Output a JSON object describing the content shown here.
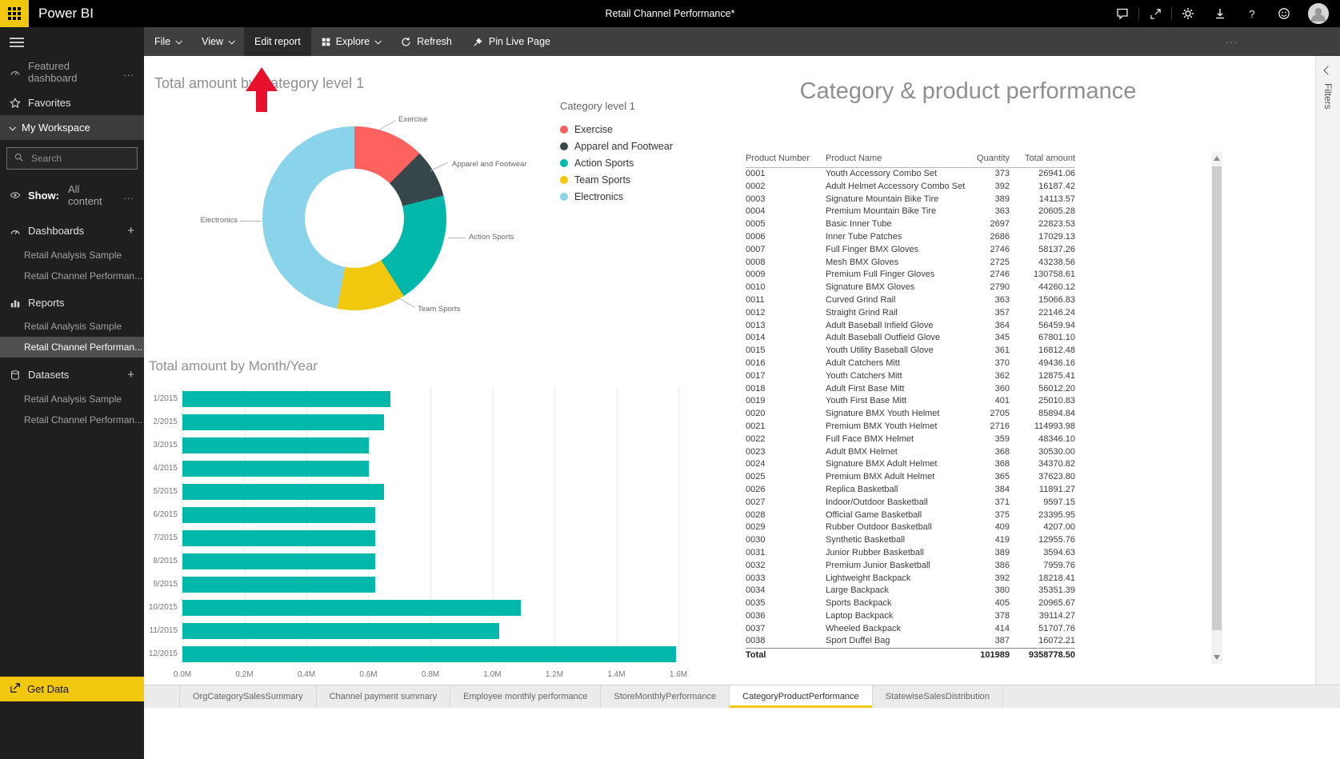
{
  "topbar": {
    "brand": "Power BI",
    "document_title": "Retail Channel Performance*"
  },
  "toolbar": {
    "file": "File",
    "view": "View",
    "edit_report": "Edit report",
    "explore": "Explore",
    "refresh": "Refresh",
    "pin_live_page": "Pin Live Page",
    "more": "..."
  },
  "sidebar": {
    "featured_dashboard": "Featured dashboard",
    "favorites": "Favorites",
    "my_workspace": "My Workspace",
    "search_placeholder": "Search",
    "show_label": "Show:",
    "show_value": "All content",
    "ellipsis": "...",
    "add": "+",
    "sections": [
      {
        "label": "Dashboards",
        "items": [
          "Retail Analysis Sample",
          "Retail Channel Performan..."
        ]
      },
      {
        "label": "Reports",
        "items": [
          "Retail Analysis Sample",
          "Retail Channel Performan..."
        ]
      },
      {
        "label": "Datasets",
        "items": [
          "Retail Analysis Sample",
          "Retail Channel Performan..."
        ]
      }
    ],
    "active_item": "Retail Channel Performan...",
    "get_data": "Get Data"
  },
  "filters_pane": {
    "label": "Filters"
  },
  "tabs": {
    "items": [
      "OrgCategorySalesSummary",
      "Channel payment summary",
      "Employee monthly performance",
      "StoreMonthlyPerformance",
      "CategoryProductPerformance",
      "StatewiseSalesDistribution"
    ],
    "active": "CategoryProductPerformance"
  },
  "colors": {
    "accent_yellow": "#F2C80F",
    "teal": "#01B8AA",
    "annotation_red": "#E8112D"
  },
  "chart_data": [
    {
      "type": "pie",
      "title": "Total amount by Category level 1",
      "legend_title": "Category level 1",
      "legend_position": "right",
      "categories": [
        "Exercise",
        "Apparel and Footwear",
        "Action Sports",
        "Team Sports",
        "Electronics"
      ],
      "values_pct": [
        12.5,
        8.5,
        20,
        12,
        47
      ],
      "colors": [
        "#FD625E",
        "#374649",
        "#01B8AA",
        "#F2C80F",
        "#8AD4EB"
      ],
      "donut_hole": true
    },
    {
      "type": "bar",
      "orientation": "horizontal",
      "title": "Total amount by Month/Year",
      "categories": [
        "1/2015",
        "2/2015",
        "3/2015",
        "4/2015",
        "5/2015",
        "6/2015",
        "7/2015",
        "8/2015",
        "9/2015",
        "10/2015",
        "11/2015",
        "12/2015"
      ],
      "values_m": [
        0.67,
        0.65,
        0.6,
        0.6,
        0.65,
        0.62,
        0.62,
        0.62,
        0.62,
        1.09,
        1.02,
        1.59
      ],
      "xlim": [
        0,
        1.6
      ],
      "x_ticks": [
        "0.0M",
        "0.2M",
        "0.4M",
        "0.6M",
        "0.8M",
        "1.0M",
        "1.2M",
        "1.4M",
        "1.6M"
      ],
      "color": "#01B8AA",
      "grid": true
    },
    {
      "type": "table",
      "title": "Category & product performance",
      "columns": [
        "Product Number",
        "Product Name",
        "Quantity",
        "Total amount"
      ],
      "rows": [
        [
          "0001",
          "Youth Accessory Combo Set",
          "373",
          "26941.06"
        ],
        [
          "0002",
          "Adult Helmet Accessory Combo Set",
          "392",
          "16187.42"
        ],
        [
          "0003",
          "Signature Mountain Bike Tire",
          "389",
          "14113.57"
        ],
        [
          "0004",
          "Premium Mountain Bike Tire",
          "363",
          "20605.28"
        ],
        [
          "0005",
          "Basic Inner Tube",
          "2697",
          "22823.53"
        ],
        [
          "0006",
          "Inner Tube Patches",
          "2686",
          "17029.13"
        ],
        [
          "0007",
          "Full Finger BMX Gloves",
          "2746",
          "58137.26"
        ],
        [
          "0008",
          "Mesh BMX Gloves",
          "2725",
          "43238.56"
        ],
        [
          "0009",
          "Premium Full Finger Gloves",
          "2746",
          "130758.61"
        ],
        [
          "0010",
          "Signature BMX Gloves",
          "2790",
          "44260.12"
        ],
        [
          "0011",
          "Curved Grind Rail",
          "363",
          "15066.83"
        ],
        [
          "0012",
          "Straight Grind Rail",
          "357",
          "22146.24"
        ],
        [
          "0013",
          "Adult Baseball Infield Glove",
          "364",
          "56459.94"
        ],
        [
          "0014",
          "Adult Baseball Outfield Glove",
          "345",
          "67801.10"
        ],
        [
          "0015",
          "Youth Utility Baseball Glove",
          "361",
          "16812.48"
        ],
        [
          "0016",
          "Adult Catchers Mitt",
          "370",
          "49436.16"
        ],
        [
          "0017",
          "Youth Catchers Mitt",
          "362",
          "12875.41"
        ],
        [
          "0018",
          "Adult First Base Mitt",
          "360",
          "56012.20"
        ],
        [
          "0019",
          "Youth First Base Mitt",
          "401",
          "25010.83"
        ],
        [
          "0020",
          "Signature BMX Youth Helmet",
          "2705",
          "85894.84"
        ],
        [
          "0021",
          "Premium BMX Youth Helmet",
          "2716",
          "114993.98"
        ],
        [
          "0022",
          "Full Face BMX Helmet",
          "359",
          "48346.10"
        ],
        [
          "0023",
          "Adult BMX Helmet",
          "368",
          "30530.00"
        ],
        [
          "0024",
          "Signature BMX Adult Helmet",
          "368",
          "34370.82"
        ],
        [
          "0025",
          "Premium BMX Adult Helmet",
          "365",
          "37623.80"
        ],
        [
          "0026",
          "Replica Basketball",
          "384",
          "11891.27"
        ],
        [
          "0027",
          "Indoor/Outdoor Basketball",
          "371",
          "9597.15"
        ],
        [
          "0028",
          "Official Game Basketball",
          "375",
          "23395.95"
        ],
        [
          "0029",
          "Rubber Outdoor Basketball",
          "409",
          "4207.00"
        ],
        [
          "0030",
          "Synthetic Basketball",
          "419",
          "12955.76"
        ],
        [
          "0031",
          "Junior Rubber Basketball",
          "389",
          "3594.63"
        ],
        [
          "0032",
          "Premium Junior Basketball",
          "386",
          "7959.76"
        ],
        [
          "0033",
          "Lightweight Backpack",
          "392",
          "18218.41"
        ],
        [
          "0034",
          "Large Backpack",
          "380",
          "35351.39"
        ],
        [
          "0035",
          "Sports Backpack",
          "405",
          "20965.67"
        ],
        [
          "0036",
          "Laptop Backpack",
          "378",
          "39114.27"
        ],
        [
          "0037",
          "Wheeled Backpack",
          "414",
          "51707.76"
        ],
        [
          "0038",
          "Sport Duffel Bag",
          "387",
          "16072.21"
        ]
      ],
      "total_row": [
        "Total",
        "",
        "101989",
        "9358778.50"
      ]
    }
  ]
}
